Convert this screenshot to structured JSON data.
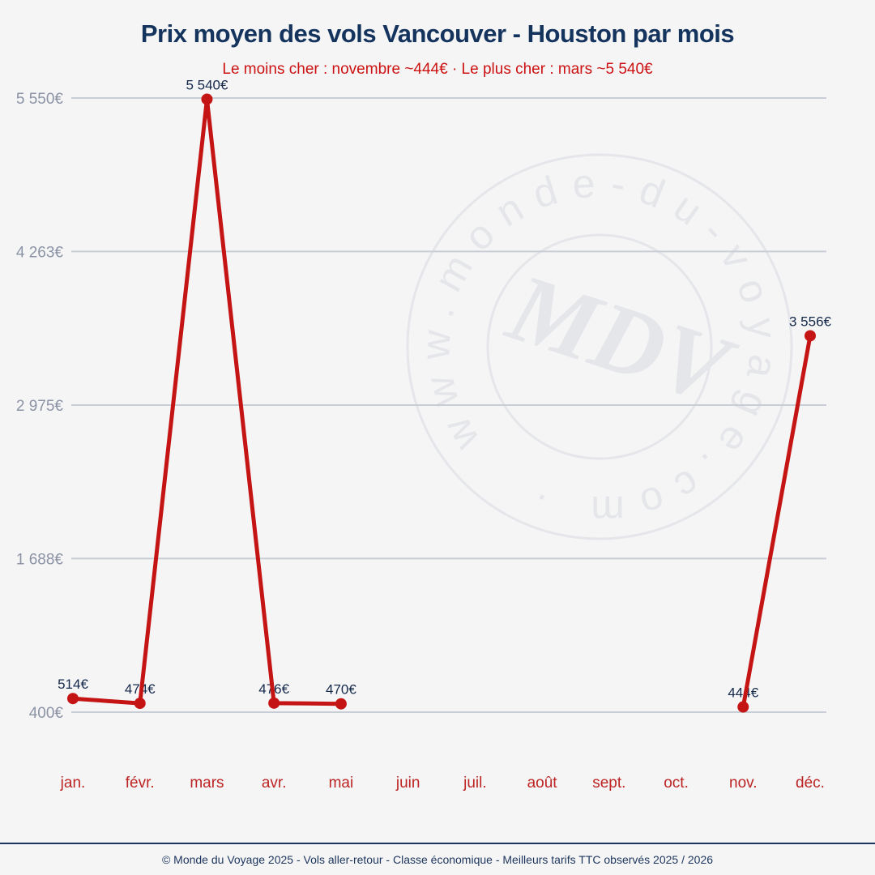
{
  "header": {
    "title": "Prix moyen des vols Vancouver - Houston par mois",
    "subtitle": "Le moins cher : novembre ~444€ · Le plus cher : mars ~5 540€"
  },
  "watermark": {
    "ring_text": "www.monde-du-voyage.com ·",
    "center_text": "MDV"
  },
  "footer": {
    "text": "© Monde du Voyage 2025 - Vols aller-retour - Classe économique - Meilleurs tarifs TTC observés 2025 / 2026"
  },
  "colors": {
    "background": "#f5f5f6",
    "title": "#14345e",
    "subtitle": "#cc1212",
    "grid": "#c9cdd5",
    "y_tick_label": "#8b93a5",
    "month_label": "#bd2424",
    "point_label": "#15294a",
    "line": "#c51414",
    "footer_text": "#1c355c",
    "watermark": "#e5e6ea"
  },
  "chart_data": {
    "type": "line",
    "title": "Prix moyen des vols Vancouver - Houston par mois",
    "xlabel": "",
    "ylabel": "",
    "unit": "€",
    "grid": true,
    "legend": false,
    "categories": [
      "jan.",
      "févr.",
      "mars",
      "avr.",
      "mai",
      "juin",
      "juil.",
      "août",
      "sept.",
      "oct.",
      "nov.",
      "déc."
    ],
    "values": [
      514,
      474,
      5540,
      476,
      470,
      null,
      null,
      null,
      null,
      null,
      444,
      3556
    ],
    "point_labels": [
      "514€",
      "474€",
      "5 540€",
      "476€",
      "470€",
      null,
      null,
      null,
      null,
      null,
      "444€",
      "3 556€"
    ],
    "y_ticks": [
      {
        "label": "5 550€",
        "value": 5550
      },
      {
        "label": "4 263€",
        "value": 4263
      },
      {
        "label": "2 975€",
        "value": 2975
      },
      {
        "label": "1 688€",
        "value": 1688
      },
      {
        "label": "400€",
        "value": 400
      }
    ],
    "ylim": [
      400,
      5550
    ],
    "min_point": {
      "month": "novembre",
      "value": 444
    },
    "max_point": {
      "month": "mars",
      "value": 5540
    }
  }
}
